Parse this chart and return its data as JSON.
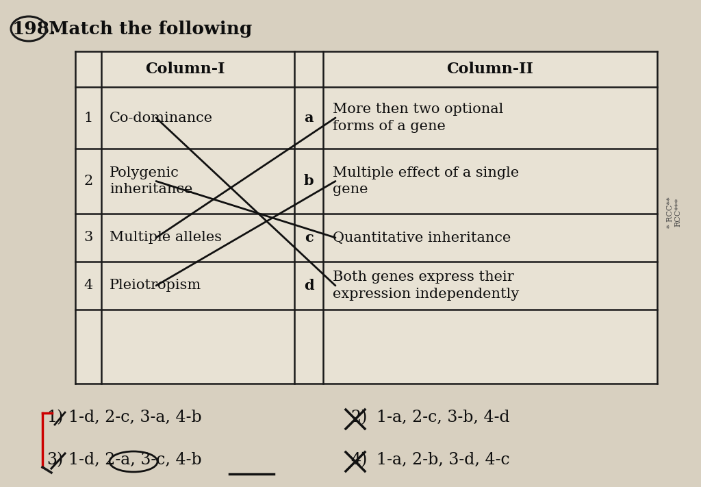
{
  "title_num": "198.",
  "title_text": " Match the following",
  "col1_header": "Column-I",
  "col2_header": "Column-II",
  "col1_nums": [
    "1",
    "2",
    "3",
    "4"
  ],
  "col1_texts": [
    "Co-dominance",
    "Polygenic\ninheritance",
    "Multiple alleles",
    "Pleiotropism"
  ],
  "col2_letters": [
    "a",
    "b",
    "c",
    "d"
  ],
  "col2_texts": [
    "More then two optional\nforms of a gene",
    "Multiple effect of a single\ngene",
    "Quantitative inheritance",
    "Both genes express their\nexpression independently"
  ],
  "opt1_num": "1)",
  "opt1_text": "1-d, 2-c, 3-a, 4-b",
  "opt2_num": "2)",
  "opt2_text": "1-a, 2-c, 3-b, 4-d",
  "opt3_num": "3)",
  "opt3_text": "1-d, 2-a, 3-c, 4-b",
  "opt4_num": "4)",
  "opt4_text": "1-a, 2-b, 3-d, 4-c",
  "bg_color": "#d8d0c0",
  "table_bg": "#e8e2d4",
  "line_color": "#1a1a1a",
  "text_color": "#0d0d0d",
  "sidebar_lines": [
    "*",
    "RCC**",
    "RCC***"
  ]
}
